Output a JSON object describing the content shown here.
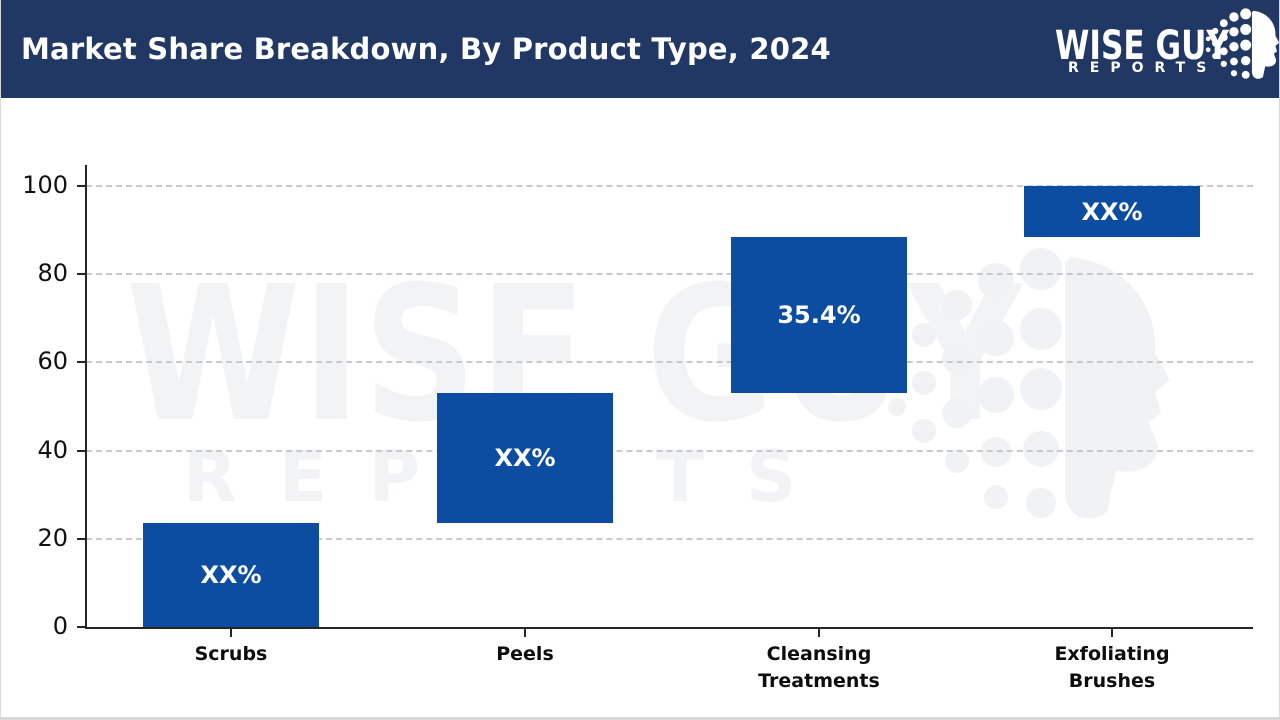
{
  "header": {
    "title": "Market Share Breakdown, By Product Type, 2024",
    "logo": {
      "line1": "WISE GUY",
      "line2": "REPORTS"
    }
  },
  "watermark": {
    "line1": "WISE GUY",
    "line2": "REPORTS"
  },
  "chart_data": {
    "type": "bar",
    "subtype": "waterfall",
    "title": "Market Share Breakdown, By Product Type, 2024",
    "categories": [
      "Scrubs",
      "Peels",
      "Cleansing Treatments",
      "Exfoliating Brushes"
    ],
    "bars": [
      {
        "category": "Scrubs",
        "start": 0,
        "end": 23.5,
        "label": "XX%"
      },
      {
        "category": "Peels",
        "start": 23.5,
        "end": 53,
        "label": "XX%"
      },
      {
        "category": "Cleansing Treatments",
        "start": 53,
        "end": 88.4,
        "label": "35.4%"
      },
      {
        "category": "Exfoliating Brushes",
        "start": 88.4,
        "end": 100,
        "label": "XX%"
      }
    ],
    "xlabel": "",
    "ylabel": "",
    "ylim": [
      0,
      100
    ],
    "yticks": [
      0,
      20,
      40,
      60,
      80,
      100
    ],
    "grid": "horizontal-dashed",
    "legend": "none"
  },
  "colors": {
    "header_bg": "#213864",
    "bar": "#0c4da2",
    "bar_label": "#ffffff",
    "grid": "#c9c9c9",
    "axis": "#262626",
    "tick_text": "#111111",
    "category_text": "#0d0d0d",
    "watermark": "#f2f3f5",
    "page_border": "#d9d9d9"
  }
}
